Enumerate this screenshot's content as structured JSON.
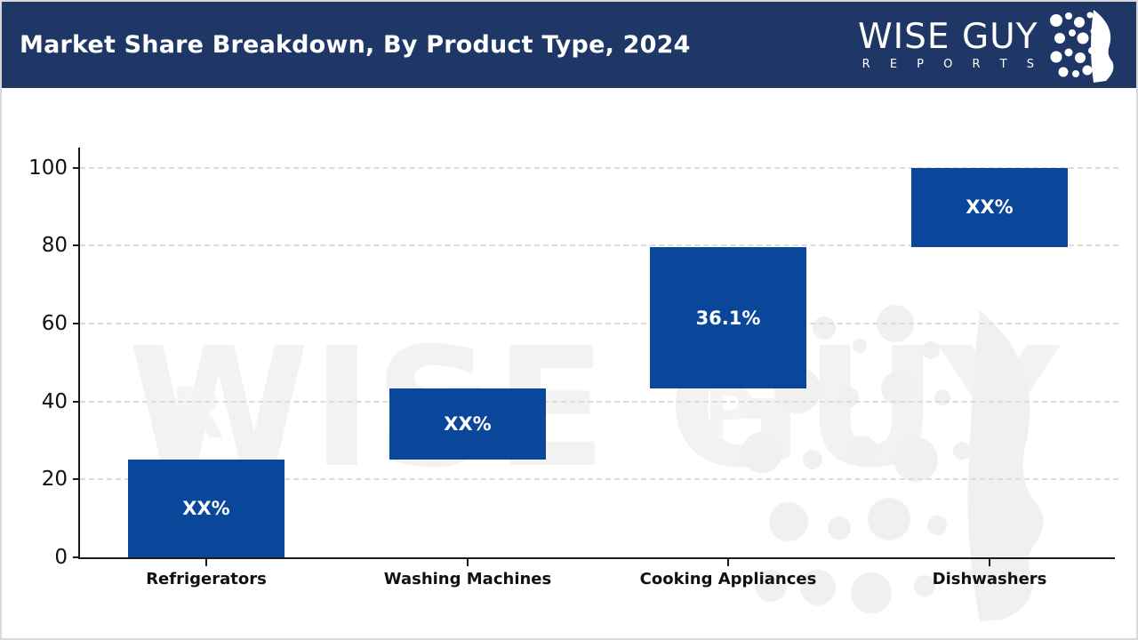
{
  "header": {
    "title": "Market Share Breakdown, By Product Type, 2024",
    "logo": {
      "name_top": "WISE GUY",
      "name_bottom": "R E P O R T S"
    },
    "colors": {
      "background": "#1e3766",
      "text": "#ffffff"
    }
  },
  "watermark": {
    "line1": "WISE GUY",
    "line2": "R E P O R T S"
  },
  "chart_data": {
    "type": "bar",
    "subtype": "waterfall",
    "title": "Market Share Breakdown, By Product Type, 2024",
    "categories": [
      "Refrigerators",
      "Washing Machines",
      "Cooking Appliances",
      "Dishwashers"
    ],
    "segments": [
      {
        "category": "Refrigerators",
        "start": 0,
        "end": 25.0,
        "value": 25.0,
        "label": "XX%"
      },
      {
        "category": "Washing Machines",
        "start": 25.0,
        "end": 43.4,
        "value": 18.4,
        "label": "XX%"
      },
      {
        "category": "Cooking Appliances",
        "start": 43.4,
        "end": 79.5,
        "value": 36.1,
        "label": "36.1%"
      },
      {
        "category": "Dishwashers",
        "start": 79.5,
        "end": 100.0,
        "value": 20.5,
        "label": "XX%"
      }
    ],
    "xlabel": "",
    "ylabel": "",
    "ylim": [
      0,
      100
    ],
    "yticks": [
      0,
      20,
      40,
      60,
      80,
      100
    ],
    "grid": "horizontal-dashed",
    "legend": "none",
    "colors": {
      "bar": "#0a4699",
      "axis": "#1a1a1a",
      "gridline": "#dcdcdc",
      "bar_label": "#ffffff",
      "tick_label": "#111111"
    }
  }
}
